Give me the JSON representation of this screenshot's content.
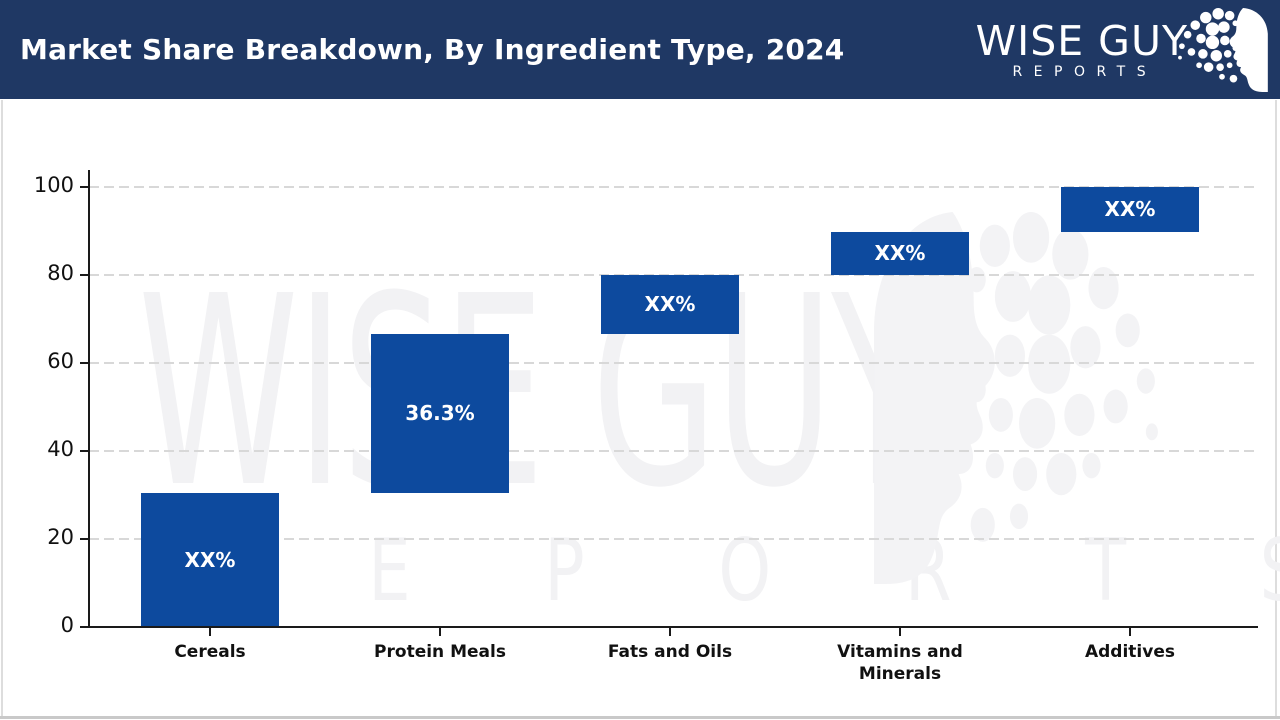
{
  "header": {
    "title": "Market Share Breakdown, By Ingredient Type, 2024",
    "bg_color": "#1f3864",
    "logo": {
      "line1": "WISE GUY",
      "line2": "REPORTS"
    }
  },
  "watermark": {
    "line1": "WISE GUY",
    "line2": "R E P O R T S"
  },
  "chart_data": {
    "type": "bar",
    "subtype": "waterfall",
    "title": "Market Share Breakdown, By Ingredient Type, 2024",
    "xlabel": "",
    "ylabel": "",
    "ylim": [
      0,
      100
    ],
    "yticks": [
      0,
      20,
      40,
      60,
      80,
      100
    ],
    "grid": "horizontal dashed",
    "legend": "none",
    "bar_color": "#0d4a9e",
    "label_color": "#ffffff",
    "categories": [
      "Cereals",
      "Protein Meals",
      "Fats and Oils",
      "Vitamins and Minerals",
      "Additives"
    ],
    "segments": [
      {
        "category": "Cereals",
        "start": 0,
        "end": 30.4,
        "label": "XX%"
      },
      {
        "category": "Protein Meals",
        "start": 30.4,
        "end": 66.7,
        "label": "36.3%"
      },
      {
        "category": "Fats and Oils",
        "start": 66.7,
        "end": 80.1,
        "label": "XX%"
      },
      {
        "category": "Vitamins and Minerals",
        "start": 80.1,
        "end": 89.8,
        "label": "XX%"
      },
      {
        "category": "Additives",
        "start": 89.8,
        "end": 100,
        "label": "XX%"
      }
    ]
  }
}
